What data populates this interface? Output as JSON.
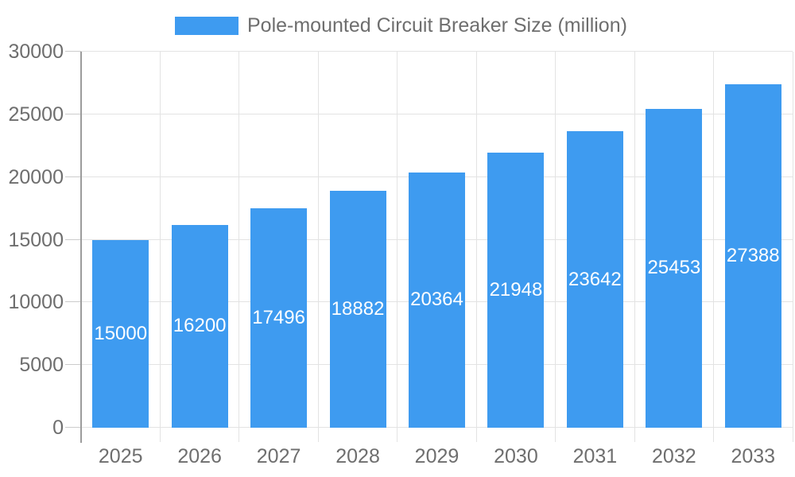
{
  "legend": {
    "label": "Pole-mounted Circuit Breaker Size (million)"
  },
  "colors": {
    "bar": "#3E9BF0",
    "grid": "#E3E3E3",
    "tick": "#CCCCCC",
    "axis": "#9C9C9C",
    "text": "#6E6E6E",
    "bar_label": "#FFFFFF",
    "background": "#FFFFFF"
  },
  "chart_data": {
    "type": "bar",
    "title": "",
    "categories": [
      "2025",
      "2026",
      "2027",
      "2028",
      "2029",
      "2030",
      "2031",
      "2032",
      "2033"
    ],
    "series": [
      {
        "name": "Pole-mounted Circuit Breaker Size (million)",
        "values": [
          15000,
          16200,
          17496,
          18882,
          20364,
          21948,
          23642,
          25453,
          27388
        ]
      }
    ],
    "xlabel": "",
    "ylabel": "",
    "ylim": [
      0,
      30000
    ],
    "yticks": [
      0,
      5000,
      10000,
      15000,
      20000,
      25000,
      30000
    ],
    "grid": true,
    "legend_position": "top",
    "bar_value_labels": "inside-center"
  }
}
